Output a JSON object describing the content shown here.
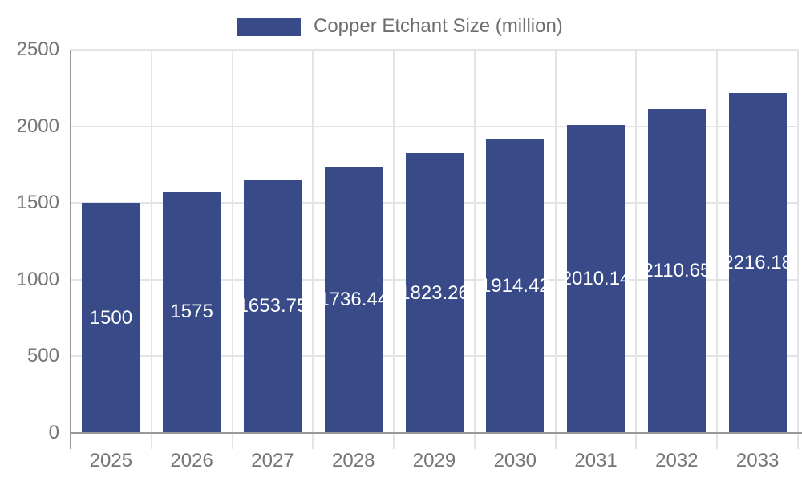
{
  "legend": {
    "label": "Copper Etchant Size (million)"
  },
  "colors": {
    "bar": "#384A87",
    "grid": "#e4e4e4",
    "axis_line": "#999999",
    "axis_label": "#757575",
    "legend_text": "#6e6e6e",
    "value_label": "#ffffff"
  },
  "chart_data": {
    "type": "bar",
    "title": "Copper Etchant Size (million)",
    "categories": [
      "2025",
      "2026",
      "2027",
      "2028",
      "2029",
      "2030",
      "2031",
      "2032",
      "2033"
    ],
    "values": [
      1500,
      1575,
      1653.75,
      1736.44,
      1823.26,
      1914.42,
      2010.14,
      2110.65,
      2216.18
    ],
    "value_labels": [
      "1500",
      "1575",
      "1653.75",
      "1736.44",
      "1823.26",
      "1914.42",
      "2010.14",
      "2110.65",
      "2216.18"
    ],
    "xlabel": "",
    "ylabel": "",
    "ylim": [
      0,
      2500
    ],
    "yticks": [
      0,
      500,
      1000,
      1500,
      2000,
      2500
    ],
    "grid": true,
    "legend_position": "top-center",
    "bar_label_position": "inside-center"
  }
}
